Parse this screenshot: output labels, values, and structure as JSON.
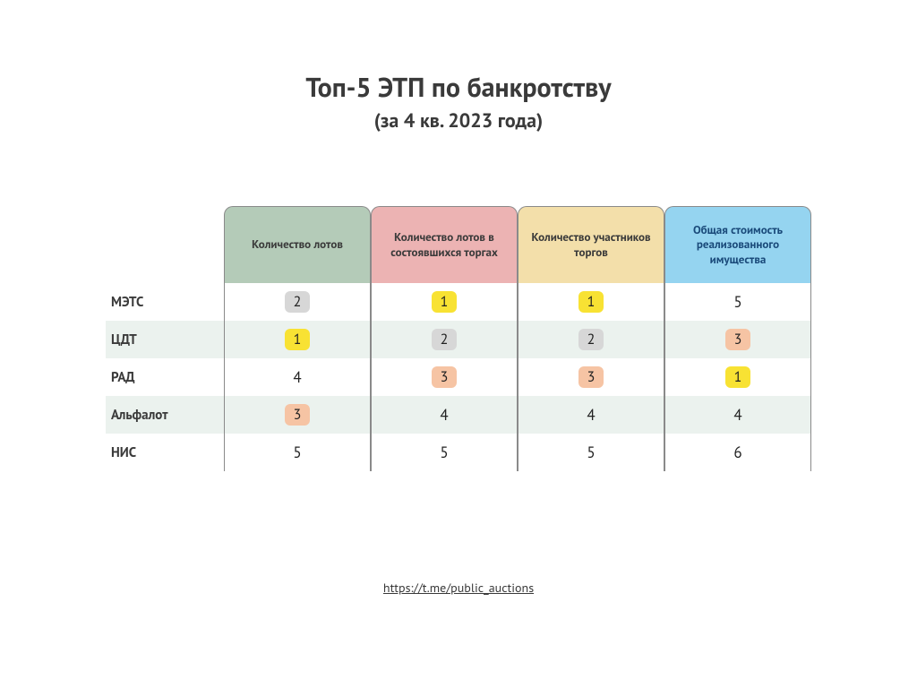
{
  "title": "Топ-5 ЭТП по банкротству",
  "subtitle": "(за 4 кв. 2023 года)",
  "footer_link_text": "https://t.me/public_auctions",
  "table": {
    "type": "table",
    "header_colors": [
      "#b4cbb8",
      "#ecb3b3",
      "#f3dfaa",
      "#95d4f0"
    ],
    "header_border_color": "#8a8a8a",
    "header_border_radius": 10,
    "alt_row_bg": "#ebf2ee",
    "pill_colors": {
      "rank1": "#f8e233",
      "rank2": "#d7d7d7",
      "rank3": "#f6c4a4"
    },
    "columns": [
      {
        "label": "Количество лотов"
      },
      {
        "label": "Количество лотов в состоявшихся торгах"
      },
      {
        "label": "Количество участников торгов"
      },
      {
        "label": "Общая стоимость реализованного имущества"
      }
    ],
    "rows": [
      {
        "label": "МЭТС",
        "cells": [
          {
            "value": "2",
            "pill": "rank2"
          },
          {
            "value": "1",
            "pill": "rank1"
          },
          {
            "value": "1",
            "pill": "rank1"
          },
          {
            "value": "5",
            "pill": null
          }
        ]
      },
      {
        "label": "ЦДТ",
        "cells": [
          {
            "value": "1",
            "pill": "rank1"
          },
          {
            "value": "2",
            "pill": "rank2"
          },
          {
            "value": "2",
            "pill": "rank2"
          },
          {
            "value": "3",
            "pill": "rank3"
          }
        ]
      },
      {
        "label": "РАД",
        "cells": [
          {
            "value": "4",
            "pill": null
          },
          {
            "value": "3",
            "pill": "rank3"
          },
          {
            "value": "3",
            "pill": "rank3"
          },
          {
            "value": "1",
            "pill": "rank1"
          }
        ]
      },
      {
        "label": "Альфалот",
        "cells": [
          {
            "value": "3",
            "pill": "rank3"
          },
          {
            "value": "4",
            "pill": null
          },
          {
            "value": "4",
            "pill": null
          },
          {
            "value": "4",
            "pill": null
          }
        ]
      },
      {
        "label": "НИС",
        "cells": [
          {
            "value": "5",
            "pill": null
          },
          {
            "value": "5",
            "pill": null
          },
          {
            "value": "5",
            "pill": null
          },
          {
            "value": "6",
            "pill": null
          }
        ]
      }
    ]
  },
  "typography": {
    "title_fontsize": 30,
    "subtitle_fontsize": 22,
    "header_fontsize": 13,
    "rowlabel_fontsize": 15,
    "cell_fontsize": 17,
    "footer_fontsize": 14
  },
  "background_color": "#ffffff"
}
